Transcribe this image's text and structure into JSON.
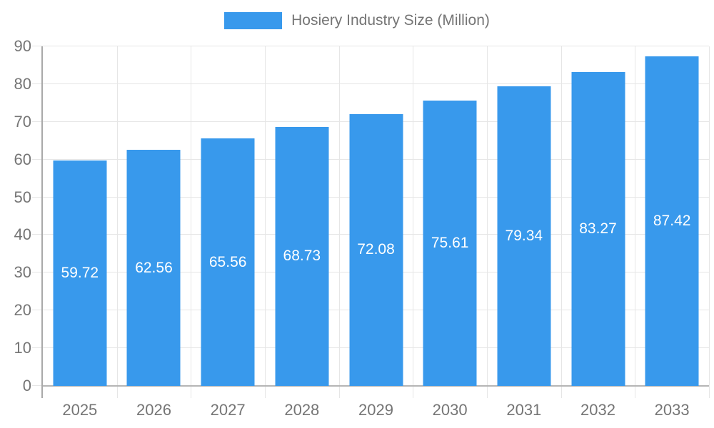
{
  "legend": {
    "label": "Hosiery Industry Size (Million)"
  },
  "chart_data": {
    "type": "bar",
    "title": "Hosiery Industry Size (Million)",
    "categories": [
      "2025",
      "2026",
      "2027",
      "2028",
      "2029",
      "2030",
      "2031",
      "2032",
      "2033"
    ],
    "series": [
      {
        "name": "Hosiery Industry Size (Million)",
        "values": [
          59.72,
          62.56,
          65.56,
          68.73,
          72.08,
          75.61,
          79.34,
          83.27,
          87.42
        ]
      }
    ],
    "value_labels": [
      "59.72",
      "62.56",
      "65.56",
      "68.73",
      "72.08",
      "75.61",
      "79.34",
      "83.27",
      "87.42"
    ],
    "xlabel": "",
    "ylabel": "",
    "ylim": [
      0,
      90
    ],
    "y_ticks": [
      0,
      10,
      20,
      30,
      40,
      50,
      60,
      70,
      80,
      90
    ],
    "grid": true,
    "legend_position": "top",
    "value_label_position": "inside-middle",
    "colors": {
      "bar": "#3899ec",
      "bar_value_label": "#ffffff",
      "legend_text": "#757575",
      "axis_text": "#757575",
      "grid_line": "#e6e6e6",
      "baseline": "#b5b5b5",
      "axis_line": "#a9a9a9"
    }
  }
}
